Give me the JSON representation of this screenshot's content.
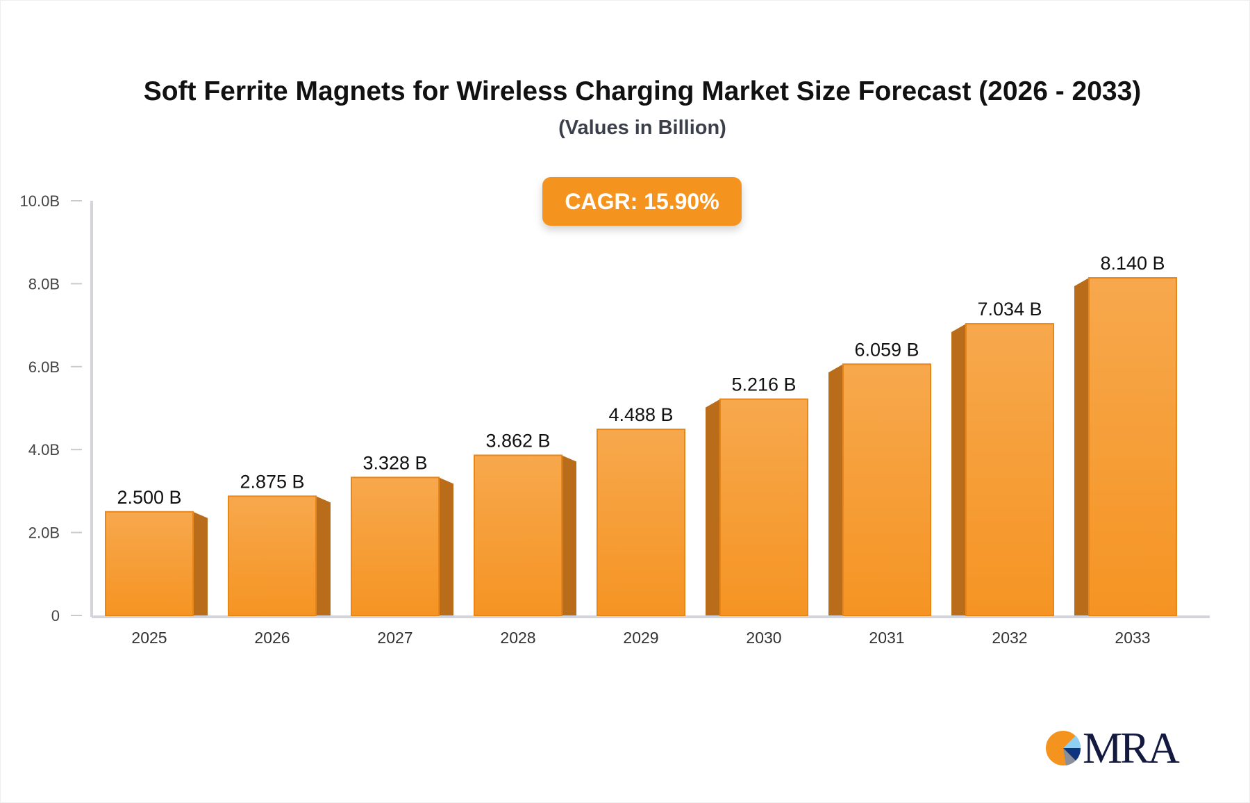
{
  "title": "Soft Ferrite Magnets for Wireless Charging Market Size Forecast (2026 - 2033)",
  "subtitle": "(Values in Billion)",
  "cagr_label": "CAGR: 15.90%",
  "logo_text": "MRA",
  "colors": {
    "bar_front": "#f7a043",
    "bar_side": "#b96d1a",
    "accent": "#f5931f",
    "axis": "#d4d5dc"
  },
  "chart_data": {
    "type": "bar",
    "title": "Soft Ferrite Magnets for Wireless Charging Market Size Forecast (2026 - 2033)",
    "subtitle": "(Values in Billion)",
    "categories": [
      "2025",
      "2026",
      "2027",
      "2028",
      "2029",
      "2030",
      "2031",
      "2032",
      "2033"
    ],
    "values": [
      2.5,
      2.875,
      3.328,
      3.862,
      4.488,
      5.216,
      6.059,
      7.034,
      8.14
    ],
    "data_labels": [
      "2.500 B",
      "2.875 B",
      "3.328 B",
      "3.862 B",
      "4.488 B",
      "5.216 B",
      "6.059 B",
      "7.034 B",
      "8.140 B"
    ],
    "y_ticks": [
      0,
      2,
      4,
      6,
      8,
      10
    ],
    "y_tick_labels": [
      "0",
      "2.0B",
      "4.0B",
      "6.0B",
      "8.0B",
      "10.0B"
    ],
    "ylim": [
      0,
      10
    ],
    "xlabel": "",
    "ylabel": "",
    "grid": false
  }
}
